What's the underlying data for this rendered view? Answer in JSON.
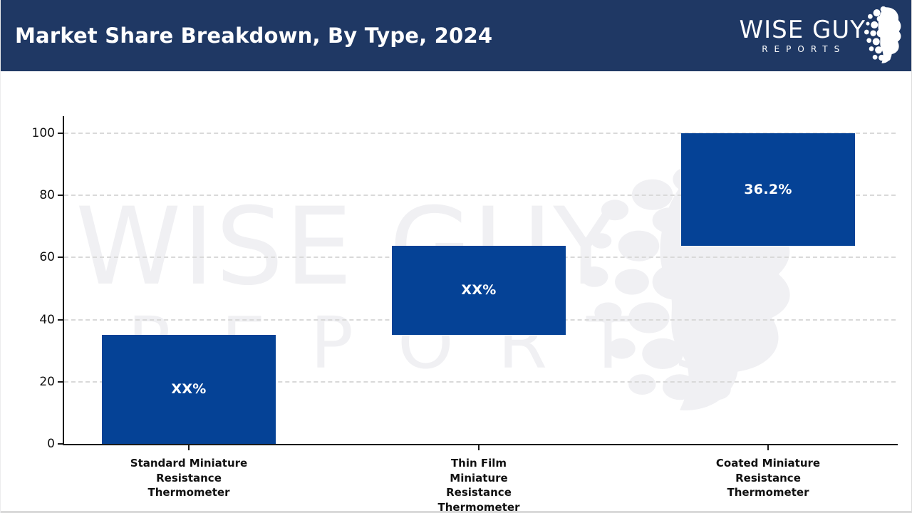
{
  "header": {
    "title": "Market Share Breakdown, By Type, 2024",
    "logo": {
      "wordmark": "WISE GUY",
      "subtitle": "REPORTS"
    }
  },
  "watermark": {
    "wordmark": "WISE GUY",
    "subtitle": "REPORTS"
  },
  "colors": {
    "header_bg": "#1f3864",
    "bar": "#054296",
    "gridline": "#d9d9d9",
    "watermark": "#f0f0f3",
    "bar_label_text": "#ffffff",
    "axis_text": "#111111"
  },
  "chart_data": {
    "type": "bar",
    "variant": "floating cumulative segment bars (waterfall-style market share)",
    "title": "Market Share Breakdown, By Type, 2024",
    "xlabel": "",
    "ylabel": "",
    "ylim": [
      0,
      105
    ],
    "yticks": [
      0,
      20,
      40,
      60,
      80,
      100
    ],
    "grid": "horizontal dashed",
    "legend": "none",
    "bar_color": "#054296",
    "categories": [
      {
        "label": "Standard Miniature\nResistance\nThermometer",
        "from": 0,
        "to": 35.1,
        "value_pct": 35.1,
        "bar_label": "XX%"
      },
      {
        "label": "Thin Film\nMiniature\nResistance\nThermometer",
        "from": 35.1,
        "to": 63.8,
        "value_pct": 28.7,
        "bar_label": "XX%"
      },
      {
        "label": "Coated Miniature\nResistance\nThermometer",
        "from": 63.8,
        "to": 100,
        "value_pct": 36.2,
        "bar_label": "36.2%"
      }
    ]
  }
}
